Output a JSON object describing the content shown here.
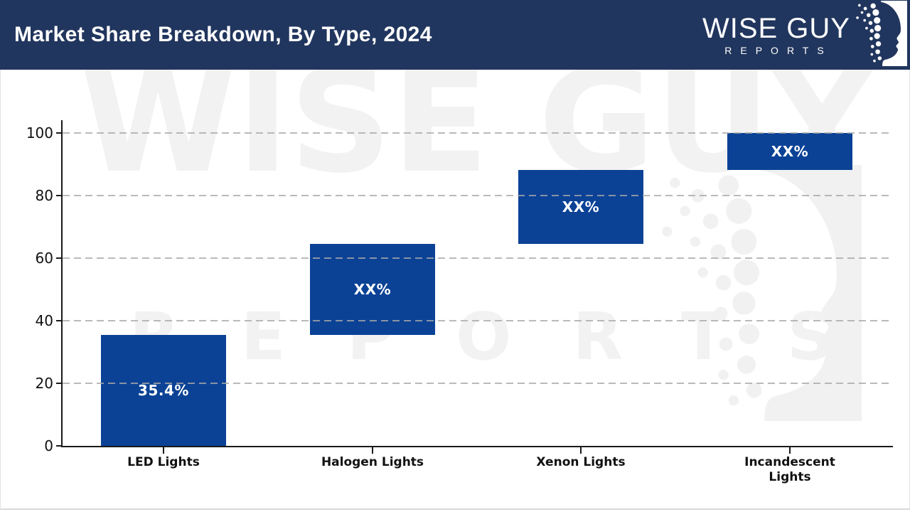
{
  "header": {
    "title": "Market Share Breakdown, By Type, 2024",
    "logo": {
      "line1": "WISE GUY",
      "line2": "REPORTS"
    }
  },
  "watermark": {
    "line1": "WISE GUY",
    "line2": "REPORTS"
  },
  "colors": {
    "header_bg": "#21365e",
    "bar_blue": "#0b4296",
    "watermark_gray": "#f2f2f2",
    "axis_black": "#1a1a1a",
    "border_gray": "#d9d9d9",
    "title_white": "#ffffff"
  },
  "chart_data": {
    "type": "waterfall",
    "title": "Market Share Breakdown, By Type, 2024",
    "units": "%",
    "categories": [
      "LED Lights",
      "Halogen Lights",
      "Xenon Lights",
      "Incandescent Lights"
    ],
    "segments": [
      {
        "category": "LED Lights",
        "start": 0,
        "end": 35.4,
        "value": 35.4,
        "label": "35.4%"
      },
      {
        "category": "Halogen Lights",
        "start": 35.4,
        "end": 64.6,
        "value": 29.2,
        "label": "XX%"
      },
      {
        "category": "Xenon Lights",
        "start": 64.6,
        "end": 88.1,
        "value": 23.5,
        "label": "XX%"
      },
      {
        "category": "Incandescent Lights",
        "start": 88.1,
        "end": 100,
        "value": 11.9,
        "label": "XX%"
      }
    ],
    "xlabel": "",
    "ylabel": "",
    "y_ticks": [
      0,
      20,
      40,
      60,
      80,
      100
    ],
    "ylim": [
      0,
      104
    ],
    "grid": "dashed horizontal, drawn over bars",
    "legend": "none",
    "bar_color": "#0b4296",
    "bar_label_color": "#ffffff"
  }
}
